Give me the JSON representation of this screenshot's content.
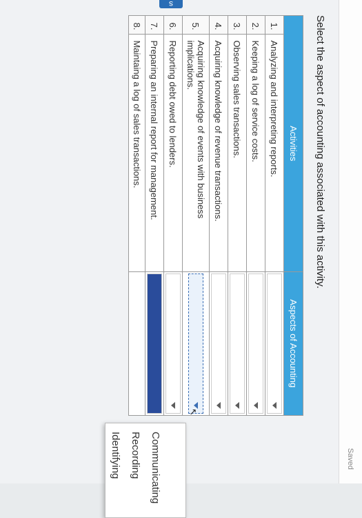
{
  "topbar": {
    "saved_label": "Saved"
  },
  "instruction": "Select the aspect of accounting associated with this activity.",
  "table": {
    "headers": {
      "activities": "Activities",
      "aspects": "Aspects of Accounting"
    },
    "rows": [
      {
        "num": "1.",
        "activity": "Analyzing and interpreting reports.",
        "state": "closed"
      },
      {
        "num": "2.",
        "activity": "Keeping a log of service costs.",
        "state": "closed"
      },
      {
        "num": "3.",
        "activity": "Observing sales transactions.",
        "state": "closed"
      },
      {
        "num": "4.",
        "activity": "Acquiring knowledge of revenue transactions.",
        "state": "closed"
      },
      {
        "num": "5.",
        "activity": "Acquiring knowledge of events with business implications.",
        "state": "active"
      },
      {
        "num": "6.",
        "activity": "Reporting debt owed to lenders.",
        "state": "closed"
      },
      {
        "num": "7.",
        "activity": "Preparing an internal report for management.",
        "state": "selected-blank"
      },
      {
        "num": "8.",
        "activity": "Maintaing a log of sales transactions.",
        "state": "none"
      }
    ]
  },
  "dropdown_options": [
    "Communicating",
    "Recording",
    "Identifying"
  ],
  "side_tab": "s",
  "colors": {
    "header_bg": "#3ba4dd",
    "page_bg": "#f0f2f4",
    "active_border": "#3b6fb5",
    "selected_bg": "#2a4c9b"
  }
}
